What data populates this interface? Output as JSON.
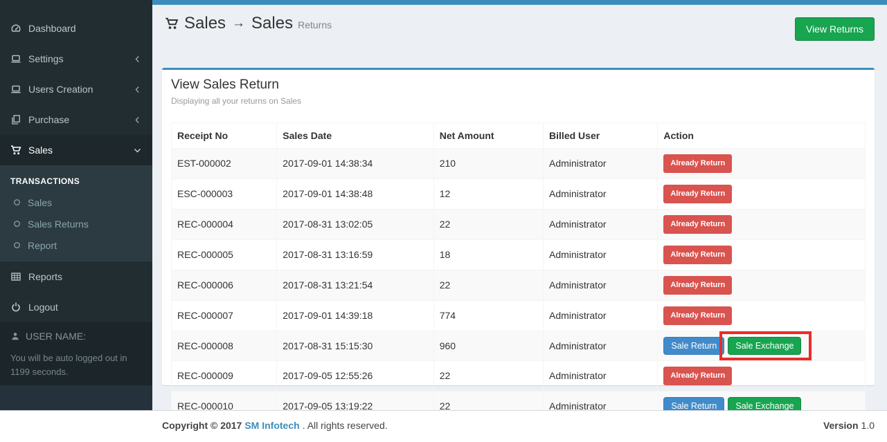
{
  "sidebar": {
    "items": [
      {
        "label": "Dashboard",
        "icon": "dashboard-icon",
        "chevron": null,
        "active": false
      },
      {
        "label": "Settings",
        "icon": "laptop-icon",
        "chevron": "left",
        "active": false
      },
      {
        "label": "Users Creation",
        "icon": "laptop-icon",
        "chevron": "left",
        "active": false
      },
      {
        "label": "Purchase",
        "icon": "copy-icon",
        "chevron": "left",
        "active": false
      },
      {
        "label": "Sales",
        "icon": "cart-icon",
        "chevron": "down",
        "active": true
      }
    ],
    "section_label": "TRANSACTIONS",
    "sub_items": [
      {
        "label": "Sales",
        "icon": "circle-icon"
      },
      {
        "label": "Sales Returns",
        "icon": "circle-icon"
      },
      {
        "label": "Report",
        "icon": "circle-icon"
      }
    ],
    "bottom_items": [
      {
        "label": "Reports",
        "icon": "table-icon"
      },
      {
        "label": "Logout",
        "icon": "power-icon"
      }
    ],
    "user_label": "USER NAME:",
    "logout_note_line1": "You will be auto logged out in",
    "logout_note_line2": "1199 seconds."
  },
  "header": {
    "breadcrumb_primary": "Sales",
    "breadcrumb_arrow": "→",
    "breadcrumb_secondary": "Sales",
    "breadcrumb_sub": "Returns",
    "view_returns_label": "View Returns"
  },
  "panel": {
    "title": "View Sales Return",
    "subtitle": "Displaying all your returns on Sales"
  },
  "table": {
    "columns": [
      "Receipt No",
      "Sales Date",
      "Net Amount",
      "Billed User",
      "Action"
    ],
    "rows": [
      {
        "receipt": "EST-000002",
        "date": "2017-09-01 14:38:34",
        "amount": "210",
        "user": "Administrator",
        "actions": [
          {
            "label": "Already Return",
            "type": "danger",
            "highlight": false
          }
        ]
      },
      {
        "receipt": "ESC-000003",
        "date": "2017-09-01 14:38:48",
        "amount": "12",
        "user": "Administrator",
        "actions": [
          {
            "label": "Already Return",
            "type": "danger",
            "highlight": false
          }
        ]
      },
      {
        "receipt": "REC-000004",
        "date": "2017-08-31 13:02:05",
        "amount": "22",
        "user": "Administrator",
        "actions": [
          {
            "label": "Already Return",
            "type": "danger",
            "highlight": false
          }
        ]
      },
      {
        "receipt": "REC-000005",
        "date": "2017-08-31 13:16:59",
        "amount": "18",
        "user": "Administrator",
        "actions": [
          {
            "label": "Already Return",
            "type": "danger",
            "highlight": false
          }
        ]
      },
      {
        "receipt": "REC-000006",
        "date": "2017-08-31 13:21:54",
        "amount": "22",
        "user": "Administrator",
        "actions": [
          {
            "label": "Already Return",
            "type": "danger",
            "highlight": false
          }
        ]
      },
      {
        "receipt": "REC-000007",
        "date": "2017-09-01 14:39:18",
        "amount": "774",
        "user": "Administrator",
        "actions": [
          {
            "label": "Already Return",
            "type": "danger",
            "highlight": false
          }
        ]
      },
      {
        "receipt": "REC-000008",
        "date": "2017-08-31 15:15:30",
        "amount": "960",
        "user": "Administrator",
        "actions": [
          {
            "label": "Sale Return",
            "type": "primary",
            "highlight": false
          },
          {
            "label": "Sale Exchange",
            "type": "success",
            "highlight": true
          }
        ]
      },
      {
        "receipt": "REC-000009",
        "date": "2017-09-05 12:55:26",
        "amount": "22",
        "user": "Administrator",
        "actions": [
          {
            "label": "Already Return",
            "type": "danger",
            "highlight": false
          }
        ]
      },
      {
        "receipt": "REC-000010",
        "date": "2017-09-05 13:19:22",
        "amount": "22",
        "user": "Administrator",
        "actions": [
          {
            "label": "Sale Return",
            "type": "primary",
            "highlight": false
          },
          {
            "label": "Sale Exchange",
            "type": "success",
            "highlight": false
          }
        ]
      }
    ]
  },
  "footer": {
    "copyright_prefix": "Copyright © 2017",
    "company": "SM Infotech",
    "copyright_suffix": ". All rights reserved.",
    "version_label": "Version",
    "version_value": "1.0"
  },
  "colors": {
    "topbar_blue": "#3c8dbc",
    "success_green": "#18a550",
    "danger_red": "#d9534f",
    "primary_blue": "#428bca",
    "highlight_red": "#e82e28",
    "sidebar_dark": "#222d32",
    "sidebar_submenu": "#2c3b41",
    "sidebar_active": "#1e282c",
    "content_bg": "#ecf0f5"
  }
}
